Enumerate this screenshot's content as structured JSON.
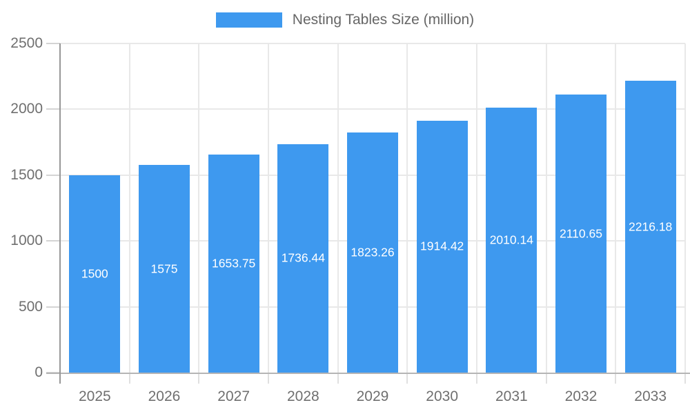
{
  "chart_data": {
    "type": "bar",
    "title": "",
    "xlabel": "",
    "ylabel": "",
    "legend": [
      "Nesting Tables Size (million)"
    ],
    "legend_position": "top-center",
    "categories": [
      "2025",
      "2026",
      "2027",
      "2028",
      "2029",
      "2030",
      "2031",
      "2032",
      "2033"
    ],
    "values": [
      1500,
      1575,
      1653.75,
      1736.44,
      1823.26,
      1914.42,
      2010.14,
      2110.65,
      2216.18
    ],
    "value_labels": [
      "1500",
      "1575",
      "1653.75",
      "1736.44",
      "1823.26",
      "1914.42",
      "2010.14",
      "2110.65",
      "2216.18"
    ],
    "ylim": [
      0,
      2500
    ],
    "yticks": [
      0,
      500,
      1000,
      1500,
      2000,
      2500
    ],
    "grid": true,
    "colors": {
      "bar": "#3E99EF",
      "bar_label_text": "#ffffff",
      "gridline": "#e8e8e8",
      "axis_baseline": "#b5b5b5",
      "y_axis_line": "#979797",
      "y_tick": "#d4d4d4",
      "x_tick": "#e0e0e0",
      "axis_text": "#6f6f6f",
      "legend_text": "#666666"
    }
  }
}
